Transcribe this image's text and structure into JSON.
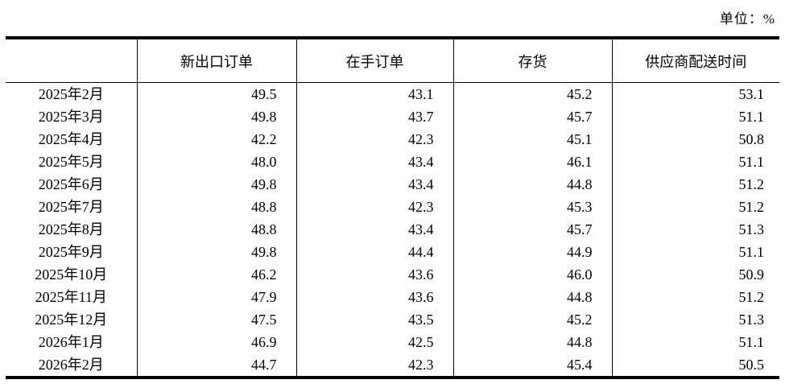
{
  "page": {
    "unit_label": "单位：%"
  },
  "table": {
    "columns": [
      "",
      "新出口订单",
      "在手订单",
      "存货",
      "供应商配送时间"
    ],
    "rows": [
      {
        "month": "2025年2月",
        "values": [
          "49.5",
          "43.1",
          "45.2",
          "53.1"
        ]
      },
      {
        "month": "2025年3月",
        "values": [
          "49.8",
          "43.7",
          "45.7",
          "51.1"
        ]
      },
      {
        "month": "2025年4月",
        "values": [
          "42.2",
          "42.3",
          "45.1",
          "50.8"
        ]
      },
      {
        "month": "2025年5月",
        "values": [
          "48.0",
          "43.4",
          "46.1",
          "51.1"
        ]
      },
      {
        "month": "2025年6月",
        "values": [
          "49.8",
          "43.4",
          "44.8",
          "51.2"
        ]
      },
      {
        "month": "2025年7月",
        "values": [
          "48.8",
          "42.3",
          "45.3",
          "51.2"
        ]
      },
      {
        "month": "2025年8月",
        "values": [
          "48.8",
          "43.4",
          "45.7",
          "51.3"
        ]
      },
      {
        "month": "2025年9月",
        "values": [
          "49.8",
          "44.4",
          "44.9",
          "51.1"
        ]
      },
      {
        "month": "2025年10月",
        "values": [
          "46.2",
          "43.6",
          "46.0",
          "50.9"
        ]
      },
      {
        "month": "2025年11月",
        "values": [
          "47.9",
          "43.6",
          "44.8",
          "51.2"
        ]
      },
      {
        "month": "2025年12月",
        "values": [
          "47.5",
          "43.5",
          "45.2",
          "51.3"
        ]
      },
      {
        "month": "2026年1月",
        "values": [
          "46.9",
          "42.5",
          "44.8",
          "51.1"
        ]
      },
      {
        "month": "2026年2月",
        "values": [
          "44.7",
          "42.3",
          "45.4",
          "50.5"
        ]
      }
    ]
  },
  "chart_data": {
    "type": "table",
    "title": "",
    "unit": "%",
    "categories": [
      "2025年2月",
      "2025年3月",
      "2025年4月",
      "2025年5月",
      "2025年6月",
      "2025年7月",
      "2025年8月",
      "2025年9月",
      "2025年10月",
      "2025年11月",
      "2025年12月",
      "2026年1月",
      "2026年2月"
    ],
    "series": [
      {
        "name": "新出口订单",
        "values": [
          49.5,
          49.8,
          42.2,
          48.0,
          49.8,
          48.8,
          48.8,
          49.8,
          46.2,
          47.9,
          47.5,
          46.9,
          44.7
        ]
      },
      {
        "name": "在手订单",
        "values": [
          43.1,
          43.7,
          42.3,
          43.4,
          43.4,
          42.3,
          43.4,
          44.4,
          43.6,
          43.6,
          43.5,
          42.5,
          42.3
        ]
      },
      {
        "name": "存货",
        "values": [
          45.2,
          45.7,
          45.1,
          46.1,
          44.8,
          45.3,
          45.7,
          44.9,
          46.0,
          44.8,
          45.2,
          44.8,
          45.4
        ]
      },
      {
        "name": "供应商配送时间",
        "values": [
          53.1,
          51.1,
          50.8,
          51.1,
          51.2,
          51.2,
          51.3,
          51.1,
          50.9,
          51.2,
          51.3,
          51.1,
          50.5
        ]
      }
    ]
  }
}
